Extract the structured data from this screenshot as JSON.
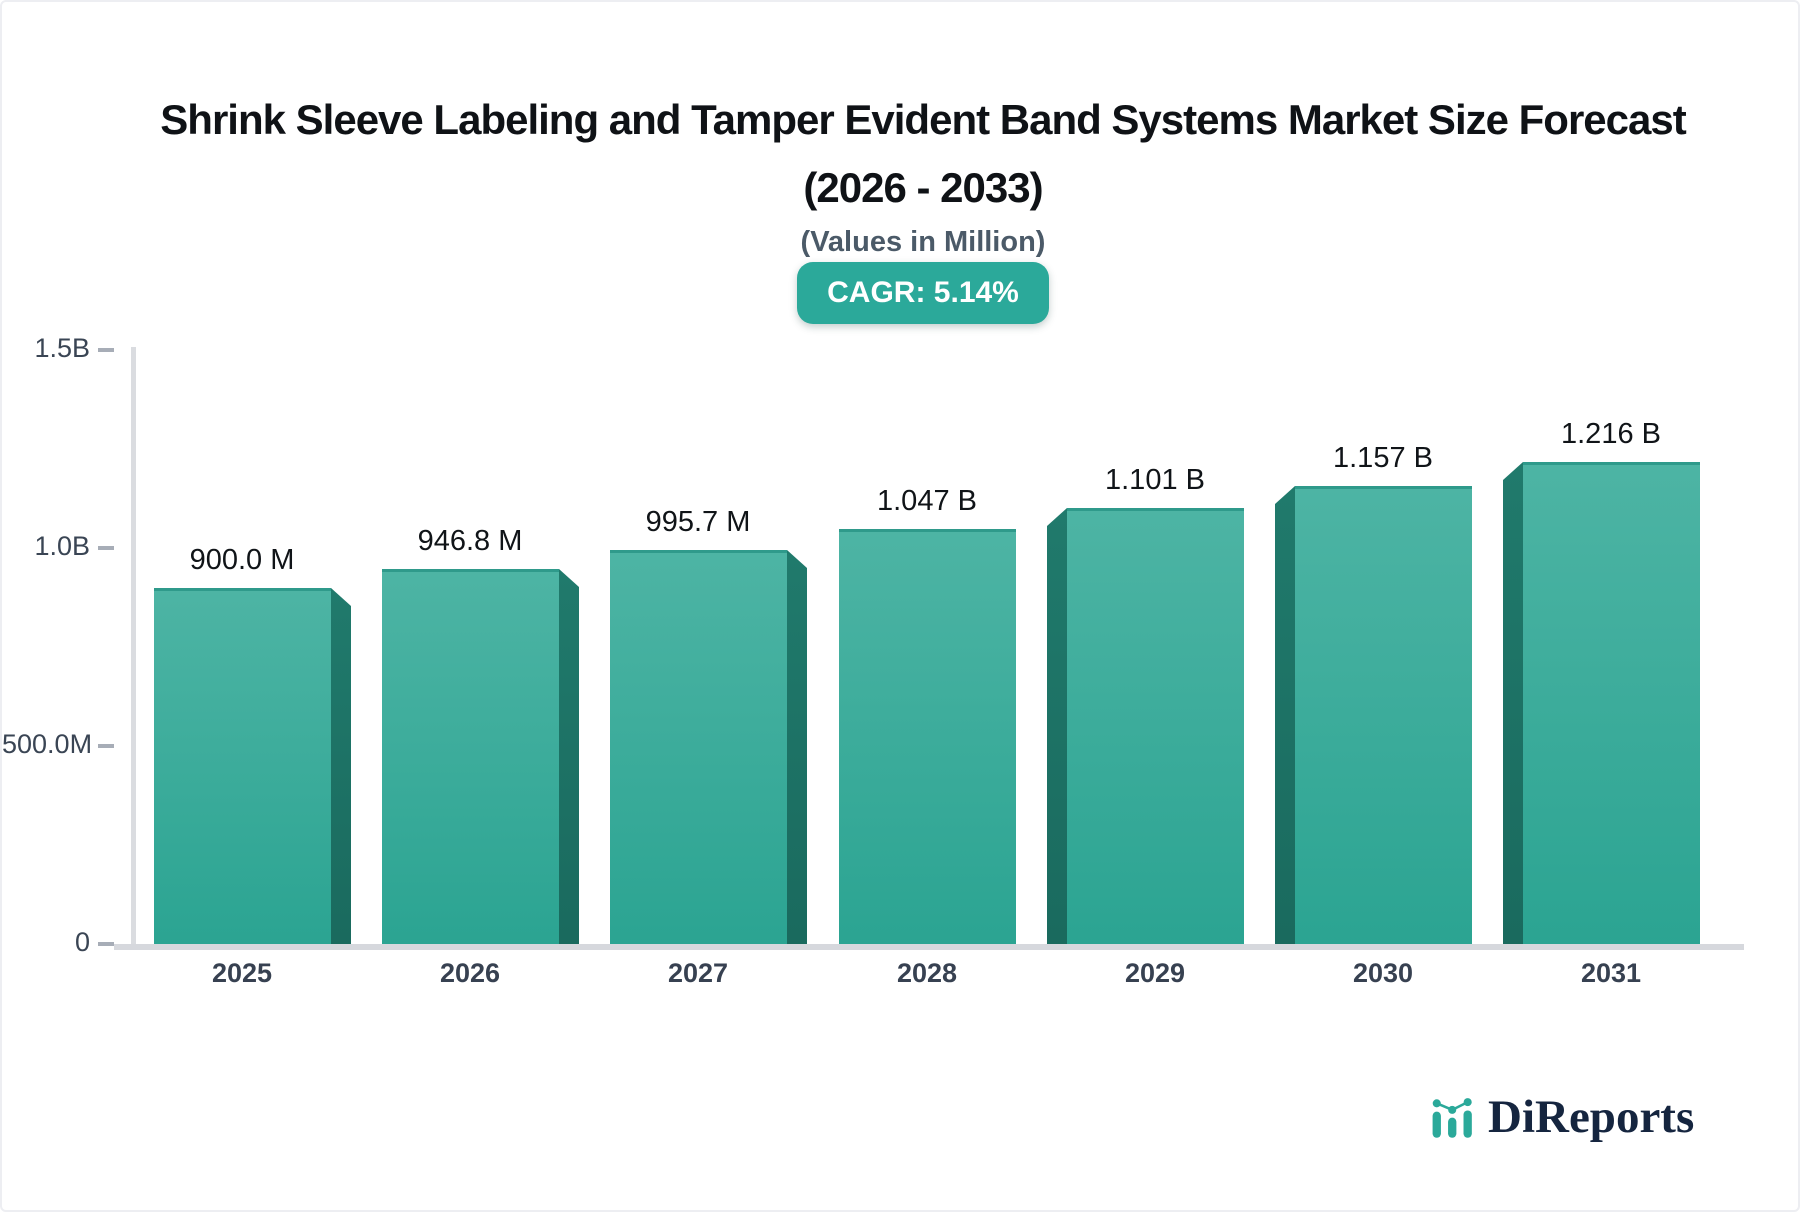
{
  "header": {
    "title_line1": "Shrink Sleeve Labeling and Tamper Evident Band Systems Market Size Forecast",
    "title_line2": "(2026 - 2033)",
    "subtitle": "(Values in Million)",
    "cagr_badge": "CAGR: 5.14%"
  },
  "branding": {
    "logo_text": "DiReports",
    "logo_icon": "bar-line-chart-icon"
  },
  "chart_data": {
    "type": "bar",
    "title": "Shrink Sleeve Labeling and Tamper Evident Band Systems Market Size Forecast (2026 - 2033)",
    "subtitle": "(Values in Million)",
    "cagr_percent": "5.14%",
    "categories": [
      "2025",
      "2026",
      "2027",
      "2028",
      "2029",
      "2030",
      "2031"
    ],
    "values_millions": [
      900.0,
      946.8,
      995.7,
      1047,
      1101,
      1157,
      1216
    ],
    "value_labels": [
      "900.0 M",
      "946.8 M",
      "995.7 M",
      "1.047 B",
      "1.101 B",
      "1.157 B",
      "1.216 B"
    ],
    "y_ticks": [
      "1.5B",
      "1.0B",
      "500.0M",
      "0"
    ],
    "y_tick_values_millions": [
      1500,
      1000,
      500,
      0
    ],
    "ylim_millions": [
      0,
      1500
    ],
    "xlabel": "",
    "ylabel": "",
    "grid": false,
    "legend": false,
    "bar_color_top": "#4db4a4",
    "bar_color_bottom": "#2ba492",
    "bar_side_color": "#207a6c",
    "bar_side_color_dark": "#1a6a5e",
    "accent": "#2ba99a"
  }
}
